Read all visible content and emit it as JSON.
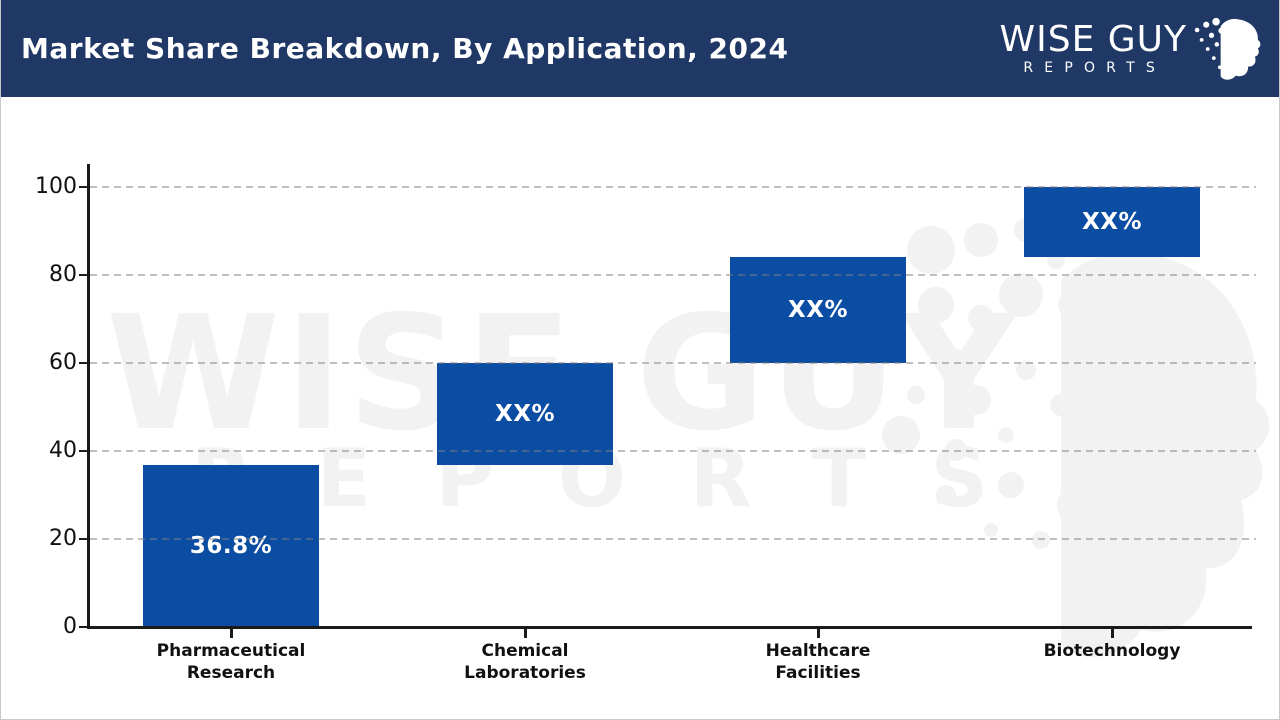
{
  "header": {
    "title": "Market Share Breakdown, By Application, 2024",
    "logo": {
      "name": "WISE GUY",
      "sub": "REPORTS"
    }
  },
  "watermark": {
    "line1": "WISE GUY",
    "line2": "REPORTS"
  },
  "colors": {
    "header_bg": "#1f3866",
    "bar": "#0b4da2",
    "bar_label": "#ffffff",
    "watermark": "#f2f2f2",
    "grid": "#808080",
    "axis": "#1a1a1a"
  },
  "chart_data": {
    "type": "bar",
    "subtype": "waterfall",
    "title": "Market Share Breakdown, By Application, 2024",
    "categories": [
      "Pharmaceutical\nResearch",
      "Chemical\nLaboratories",
      "Healthcare\nFacilities",
      "Biotechnology"
    ],
    "segments": [
      {
        "category": "Pharmaceutical Research",
        "start": 0,
        "end": 36.8,
        "label": "36.8%"
      },
      {
        "category": "Chemical Laboratories",
        "start": 36.8,
        "end": 60,
        "label": "XX%"
      },
      {
        "category": "Healthcare Facilities",
        "start": 60,
        "end": 84,
        "label": "XX%"
      },
      {
        "category": "Biotechnology",
        "start": 84,
        "end": 100,
        "label": "XX%"
      }
    ],
    "xlabel": "",
    "ylabel": "",
    "yticks": [
      0,
      20,
      40,
      60,
      80,
      100
    ],
    "ylim": [
      0,
      105
    ],
    "grid": "horizontal dashed",
    "legend": "none"
  }
}
